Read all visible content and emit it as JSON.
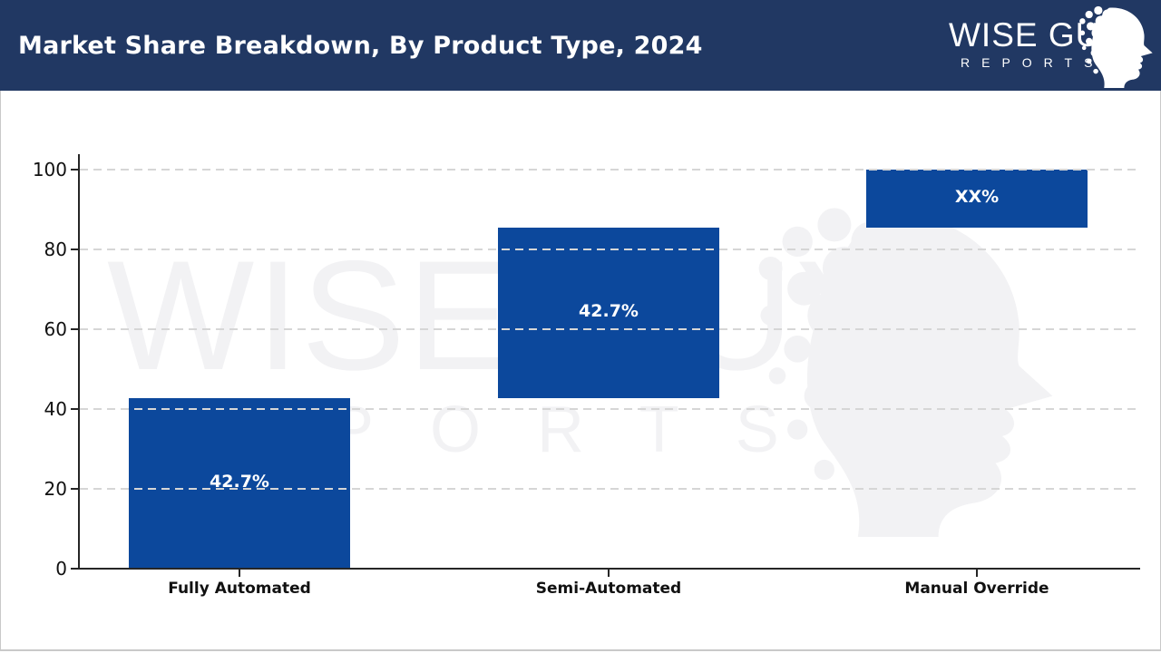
{
  "header": {
    "title": "Market Share Breakdown, By Product Type, 2024",
    "bg_color": "#213863",
    "logo": {
      "line1": "WISE GUY",
      "line2": "REPORTS"
    }
  },
  "watermark": {
    "line1": "WISE GUY",
    "line2": "REPORTS"
  },
  "chart_data": {
    "type": "bar",
    "subtype": "stacked-waterfall",
    "title": "Market Share Breakdown, By Product Type, 2024",
    "categories": [
      "Fully Automated",
      "Semi-Automated",
      "Manual Override"
    ],
    "bars": [
      {
        "category": "Fully Automated",
        "start": 0,
        "end": 42.7,
        "label": "42.7%"
      },
      {
        "category": "Semi-Automated",
        "start": 42.7,
        "end": 85.4,
        "label": "42.7%"
      },
      {
        "category": "Manual Override",
        "start": 85.4,
        "end": 100,
        "label": "XX%"
      }
    ],
    "xlabel": "",
    "ylabel": "",
    "ylim": [
      0,
      100
    ],
    "yticks": [
      0,
      20,
      40,
      60,
      80,
      100
    ],
    "grid": "horizontal-dashed",
    "legend": "none",
    "bar_color": "#0c489c",
    "bar_label_color": "#ffffff",
    "grid_color": "#d6d6d6",
    "axis_color": "#262626"
  }
}
